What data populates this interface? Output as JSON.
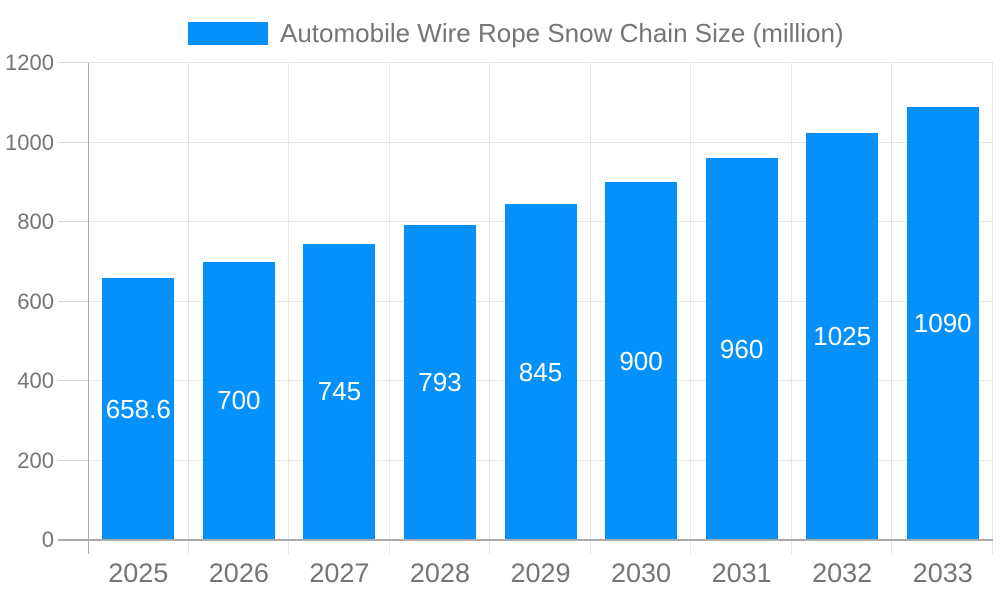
{
  "legend": {
    "label": "Automobile Wire Rope Snow Chain Size (million)"
  },
  "chart_data": {
    "type": "bar",
    "title": "Automobile Wire Rope Snow Chain Size (million)",
    "series_name": "Automobile Wire Rope Snow Chain Size (million)",
    "categories": [
      "2025",
      "2026",
      "2027",
      "2028",
      "2029",
      "2030",
      "2031",
      "2032",
      "2033"
    ],
    "values": [
      658.6,
      700,
      745,
      793,
      845,
      900,
      960,
      1025,
      1090
    ],
    "xlabel": "",
    "ylabel": "",
    "ylim": [
      0,
      1200
    ],
    "yticks": [
      0,
      200,
      400,
      600,
      800,
      1000,
      1200
    ],
    "grid": true,
    "legend_position": "top",
    "value_label_position": "inside-center",
    "colors": {
      "bar": "#0591fb",
      "value_label": "#ffffff",
      "axis_text": "#757575",
      "legend_text": "#757575",
      "gridline": "#e5e5e5",
      "tick": "#d6d6d6",
      "axis_line": "#aaaaaa",
      "background": "#ffffff"
    }
  }
}
